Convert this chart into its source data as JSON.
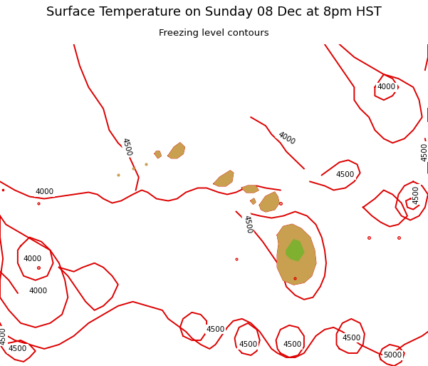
{
  "title": "Surface Temperature on Sunday 08 Dec at 8pm HST",
  "subtitle": "Freezing level contours",
  "title_fontsize": 13,
  "subtitle_fontsize": 9.5,
  "background_color": "#dde0ee",
  "map_bg_color": "#d8dced",
  "border_color": "#8a8a00",
  "contour_color": "#dd0000",
  "label_text_color": "black",
  "label_bg_color": "white",
  "grid_color": "white",
  "land_color_main": "#c8a050",
  "land_color_green": "#80b030",
  "figsize": [
    6.01,
    5.13
  ],
  "dpi": 100,
  "xlim": [
    -165.5,
    -151.0
  ],
  "ylim": [
    17.0,
    24.5
  ],
  "grid_lons": [
    -164,
    -162,
    -160,
    -158,
    -156,
    -154,
    -152
  ],
  "grid_lats": [
    18,
    19,
    20,
    21,
    22,
    23,
    24
  ]
}
